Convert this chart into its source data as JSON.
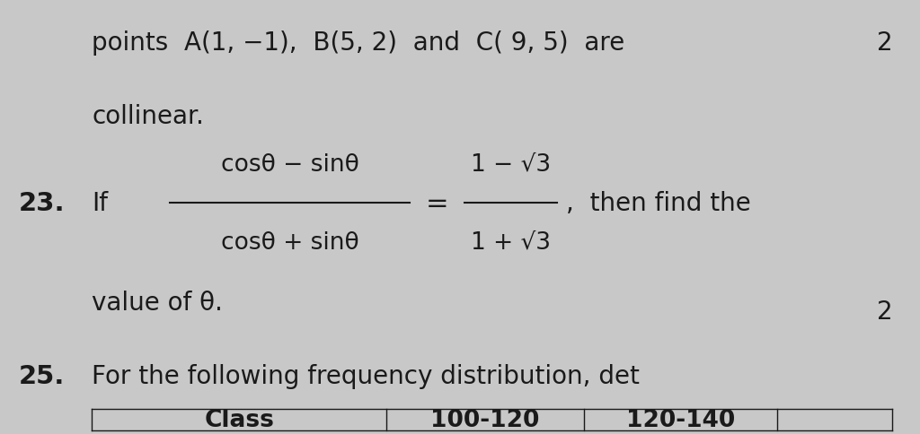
{
  "bg_color": "#c8c8c8",
  "text_color": "#1a1a1a",
  "figsize": [
    10.24,
    4.85
  ],
  "dpi": 100,
  "line1": "points  A(1, −1),  B(5, 2)  and  C( 9, 5)  are",
  "line2": "collinear.",
  "num1": "2",
  "q23_label": "23.",
  "q23_intro": "If",
  "q23_frac_num": "cosθ − sinθ",
  "q23_frac_den": "cosθ + sinθ",
  "q23_eq": "=",
  "q23_rhs_num": "1 − √3",
  "q23_rhs_den": "1 + √3",
  "q23_comma": ",  then find the",
  "q23_value": "value of θ.",
  "num2": "2",
  "q25_label": "25.",
  "q25_text": "For the following frequency distribution, det",
  "table_row": "Class",
  "col1": "100-120",
  "col2": "120-140"
}
